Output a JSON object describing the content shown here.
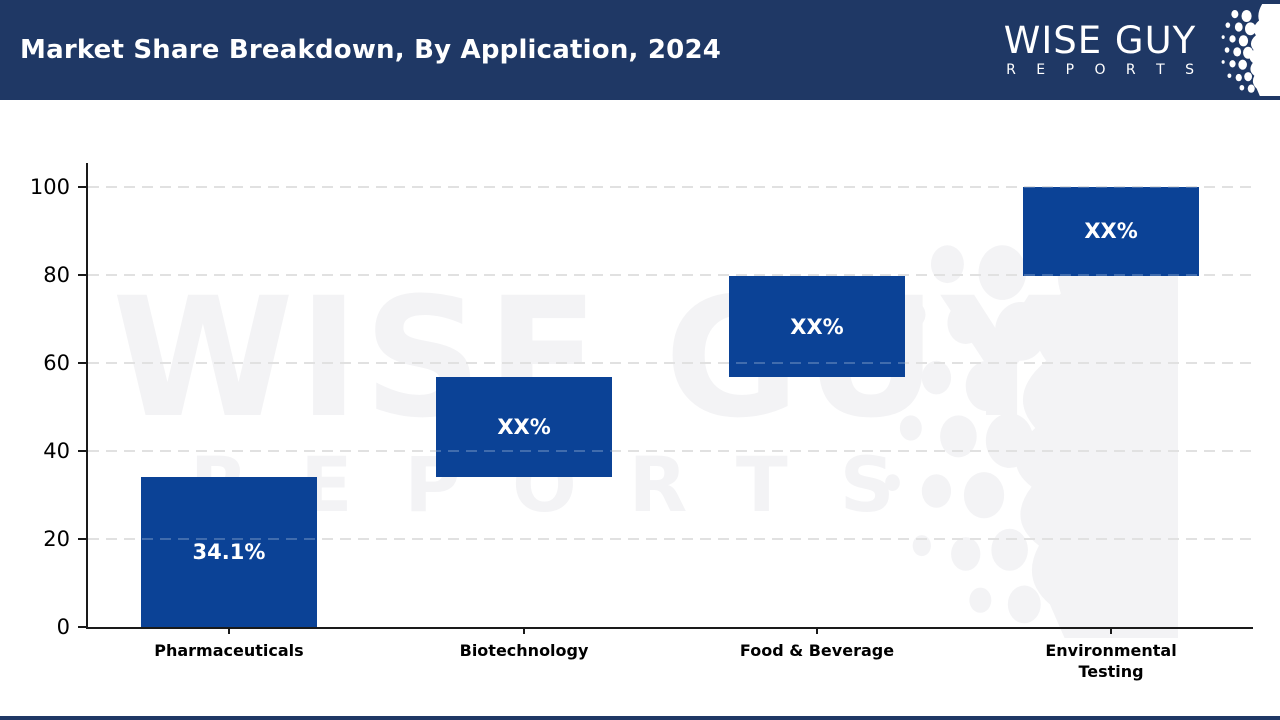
{
  "header": {
    "title": "Market Share Breakdown, By Application, 2024",
    "bg_color": "#1f3865",
    "brand": {
      "line1": "WISE GUY",
      "line2": "R E P O R T S"
    }
  },
  "watermark": {
    "line1": "WISE GUY",
    "line2": "REPORTS"
  },
  "chart_data": {
    "type": "bar",
    "subtype": "waterfall",
    "title": "Market Share Breakdown, By Application, 2024",
    "categories": [
      "Pharmaceuticals",
      "Biotechnology",
      "Food & Beverage",
      "Environmental Testing"
    ],
    "segments": [
      {
        "category": "Pharmaceuticals",
        "label": "34.1%",
        "start": 0,
        "end": 34.1
      },
      {
        "category": "Biotechnology",
        "label": "XX%",
        "start": 34.1,
        "end": 56.8
      },
      {
        "category": "Food & Beverage",
        "label": "XX%",
        "start": 56.8,
        "end": 79.8
      },
      {
        "category": "Environmental Testing",
        "label": "XX%",
        "start": 79.8,
        "end": 100
      }
    ],
    "ylim": [
      0,
      100
    ],
    "yticks": [
      0,
      20,
      40,
      60,
      80,
      100
    ],
    "xlabel": "",
    "ylabel": "",
    "grid": "horizontal-dashed",
    "legend": "none",
    "bar_color": "#0b4296",
    "bar_label_color": "#ffffff",
    "axis_color": "#1a1a1a",
    "grid_color": "#d9d9d9",
    "header_color": "#1f3865"
  }
}
